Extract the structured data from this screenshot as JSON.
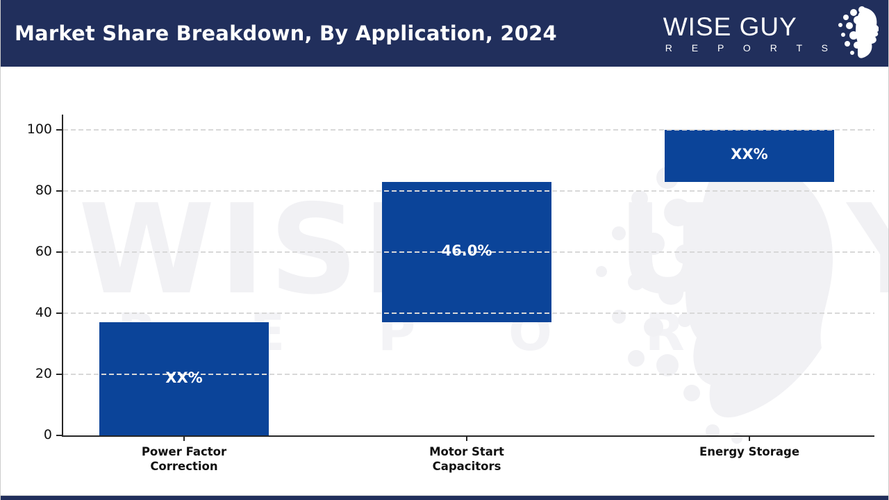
{
  "header": {
    "title": "Market Share Breakdown, By Application, 2024",
    "bg_color": "#212f5c",
    "logo": {
      "wordmark": "WISE GUY",
      "subtitle": "R E P O R T S"
    }
  },
  "watermark": {
    "word_wise": "WISE",
    "word_guy": "G U Y",
    "word_reports": "R E P O R T S"
  },
  "chart_data": {
    "type": "bar",
    "subtype": "floating_percentage_segments",
    "title": "Market Share Breakdown, By Application, 2024",
    "categories": [
      "Power Factor Correction",
      "Motor Start Capacitors",
      "Energy Storage"
    ],
    "category_lines": [
      [
        "Power Factor",
        "Correction"
      ],
      [
        "Motor Start",
        "Capacitors"
      ],
      [
        "Energy Storage"
      ]
    ],
    "bars": [
      {
        "category": "Power Factor Correction",
        "start": 0,
        "end": 37,
        "value": 37,
        "value_label": "XX%"
      },
      {
        "category": "Motor Start Capacitors",
        "start": 37,
        "end": 83,
        "value": 46,
        "value_label": "46.0%"
      },
      {
        "category": "Energy Storage",
        "start": 83,
        "end": 100,
        "value": 17,
        "value_label": "XX%"
      }
    ],
    "ylim": [
      0,
      100
    ],
    "yticks": [
      0,
      20,
      40,
      60,
      80,
      100
    ],
    "xlabel": "",
    "ylabel": "",
    "legend": "none",
    "grid": {
      "horizontal": true,
      "style": "dashed",
      "color": "#d8d8d8"
    },
    "bar_color": "#0b4499",
    "bar_label_color": "#ffffff",
    "axis_color": "#262626",
    "tick_label_color": "#111111"
  }
}
